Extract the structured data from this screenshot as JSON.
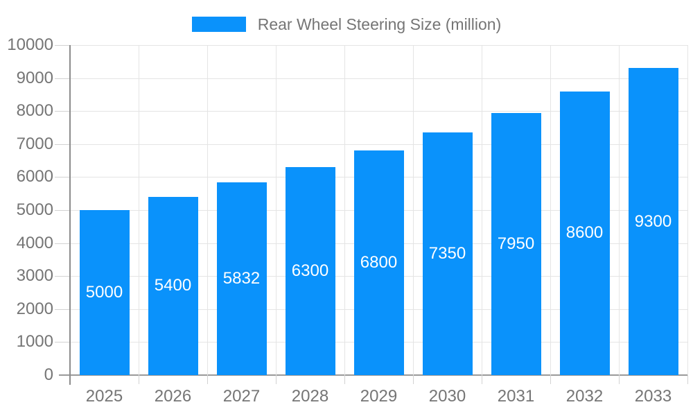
{
  "chart_data": {
    "type": "bar",
    "title": "Rear Wheel Steering Size (million)",
    "categories": [
      "2025",
      "2026",
      "2027",
      "2028",
      "2029",
      "2030",
      "2031",
      "2032",
      "2033"
    ],
    "values": [
      5000,
      5400,
      5832,
      6300,
      6800,
      7350,
      7950,
      8600,
      9300
    ],
    "bar_value_labels": [
      "5000",
      "5400",
      "5832",
      "6300",
      "6800",
      "7350",
      "7950",
      "8600",
      "9300"
    ],
    "xlabel": "",
    "ylabel": "",
    "ylim": [
      0,
      10000
    ],
    "ytick_step": 1000,
    "ytick_labels": [
      "0",
      "1000",
      "2000",
      "3000",
      "4000",
      "5000",
      "6000",
      "7000",
      "8000",
      "9000",
      "10000"
    ],
    "legend_position": "top-center",
    "grid": true,
    "colors": {
      "bar": "#0a92fb",
      "bar_value_text": "#ffffff",
      "axis_line": "#8c8c8c",
      "baseline": "#9a9a9a",
      "gridline": "#e4e4e4",
      "tick": "#d2d2d2",
      "text": "#757575",
      "background": "#ffffff"
    }
  }
}
